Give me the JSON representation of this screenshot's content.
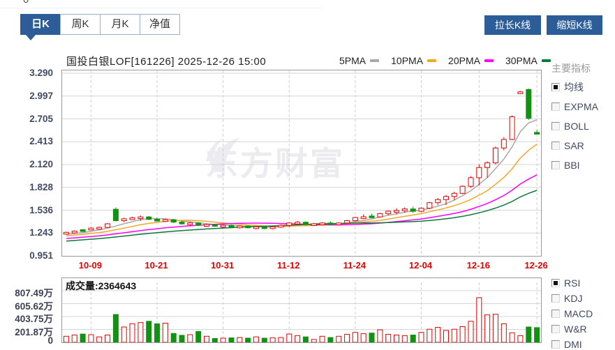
{
  "page": {
    "partial_top_text": "0"
  },
  "tabs": {
    "items": [
      {
        "label": "日K",
        "selected": true
      },
      {
        "label": "周K",
        "selected": false
      },
      {
        "label": "月K",
        "selected": false
      },
      {
        "label": "净值",
        "selected": false
      }
    ]
  },
  "toolbar": {
    "stretch_label": "拉长K线",
    "shrink_label": "缩短K线",
    "button_color": "#2d5d99"
  },
  "chart_header": {
    "title": "国投白银LOF[161226] 2025-12-26 15:00",
    "legend": [
      {
        "label": "5PMA",
        "color": "#a8a8a8"
      },
      {
        "label": "10PMA",
        "color": "#f5a623"
      },
      {
        "label": "20PMA",
        "color": "#ff00ff"
      },
      {
        "label": "30PMA",
        "color": "#0a7a3a"
      }
    ]
  },
  "watermark": {
    "text": "东方财富"
  },
  "sidebar": {
    "section_title": "主要指标",
    "main_indicators": [
      {
        "label": "均线",
        "checked": true
      },
      {
        "label": "EXPMA",
        "checked": false
      },
      {
        "label": "BOLL",
        "checked": false
      },
      {
        "label": "SAR",
        "checked": false
      },
      {
        "label": "BBI",
        "checked": false
      }
    ],
    "sub_indicators": [
      {
        "label": "RSI",
        "checked": true
      },
      {
        "label": "KDJ",
        "checked": false
      },
      {
        "label": "MACD",
        "checked": false
      },
      {
        "label": "W&R",
        "checked": false
      },
      {
        "label": "DMI",
        "checked": false
      }
    ]
  },
  "chart_data": [
    {
      "type": "candlestick",
      "title": "国投白银LOF[161226] 2025-12-26 15:00",
      "ylim": [
        0.951,
        3.29
      ],
      "y_axis_labels": [
        "3.290",
        "2.997",
        "2.705",
        "2.413",
        "2.120",
        "1.828",
        "1.536",
        "1.243",
        "0.951"
      ],
      "x_axis_labels": [
        "10-09",
        "10-21",
        "10-31",
        "11-12",
        "11-24",
        "12-04",
        "12-16",
        "12-26"
      ],
      "x_label_indices": [
        3,
        11,
        19,
        27,
        35,
        43,
        50,
        57
      ],
      "up_color": "#e60000",
      "down_color": "#119311",
      "grid": true,
      "candles_ohlc": [
        [
          1.245,
          1.262,
          1.228,
          1.252
        ],
        [
          1.252,
          1.278,
          1.242,
          1.268
        ],
        [
          1.286,
          1.292,
          1.27,
          1.278
        ],
        [
          1.298,
          1.318,
          1.278,
          1.306
        ],
        [
          1.306,
          1.326,
          1.292,
          1.316
        ],
        [
          1.316,
          1.372,
          1.308,
          1.362
        ],
        [
          1.548,
          1.572,
          1.392,
          1.402
        ],
        [
          1.402,
          1.438,
          1.382,
          1.426
        ],
        [
          1.426,
          1.452,
          1.412,
          1.438
        ],
        [
          1.438,
          1.468,
          1.398,
          1.45
        ],
        [
          1.45,
          1.462,
          1.408,
          1.42
        ],
        [
          1.42,
          1.442,
          1.392,
          1.403
        ],
        [
          1.403,
          1.428,
          1.382,
          1.414
        ],
        [
          1.414,
          1.422,
          1.372,
          1.383
        ],
        [
          1.383,
          1.398,
          1.352,
          1.363
        ],
        [
          1.363,
          1.382,
          1.342,
          1.373
        ],
        [
          1.373,
          1.382,
          1.332,
          1.343
        ],
        [
          1.343,
          1.362,
          1.322,
          1.353
        ],
        [
          1.353,
          1.362,
          1.322,
          1.333
        ],
        [
          1.333,
          1.352,
          1.312,
          1.343
        ],
        [
          1.343,
          1.352,
          1.312,
          1.323
        ],
        [
          1.323,
          1.342,
          1.302,
          1.333
        ],
        [
          1.333,
          1.342,
          1.302,
          1.313
        ],
        [
          1.313,
          1.332,
          1.292,
          1.323
        ],
        [
          1.323,
          1.332,
          1.292,
          1.303
        ],
        [
          1.303,
          1.332,
          1.292,
          1.322
        ],
        [
          1.322,
          1.352,
          1.312,
          1.342
        ],
        [
          1.342,
          1.382,
          1.322,
          1.372
        ],
        [
          1.372,
          1.398,
          1.342,
          1.382
        ],
        [
          1.382,
          1.392,
          1.342,
          1.352
        ],
        [
          1.352,
          1.372,
          1.332,
          1.362
        ],
        [
          1.362,
          1.382,
          1.342,
          1.372
        ],
        [
          1.372,
          1.392,
          1.352,
          1.362
        ],
        [
          1.362,
          1.382,
          1.342,
          1.372
        ],
        [
          1.372,
          1.412,
          1.358,
          1.402
        ],
        [
          1.402,
          1.452,
          1.392,
          1.442
        ],
        [
          1.442,
          1.482,
          1.422,
          1.452
        ],
        [
          1.462,
          1.492,
          1.438,
          1.45
        ],
        [
          1.45,
          1.502,
          1.442,
          1.492
        ],
        [
          1.492,
          1.532,
          1.472,
          1.522
        ],
        [
          1.522,
          1.562,
          1.482,
          1.532
        ],
        [
          1.532,
          1.572,
          1.502,
          1.552
        ],
        [
          1.552,
          1.582,
          1.502,
          1.522
        ],
        [
          1.522,
          1.572,
          1.512,
          1.562
        ],
        [
          1.562,
          1.642,
          1.552,
          1.632
        ],
        [
          1.632,
          1.692,
          1.602,
          1.672
        ],
        [
          1.672,
          1.732,
          1.602,
          1.712
        ],
        [
          1.712,
          1.772,
          1.662,
          1.752
        ],
        [
          1.752,
          1.852,
          1.742,
          1.842
        ],
        [
          1.842,
          1.972,
          1.822,
          1.952
        ],
        [
          1.952,
          2.122,
          1.852,
          2.082
        ],
        [
          2.082,
          2.162,
          1.952,
          2.142
        ],
        [
          2.142,
          2.352,
          2.122,
          2.332
        ],
        [
          2.332,
          2.472,
          2.302,
          2.442
        ],
        [
          2.442,
          2.752,
          2.432,
          2.732
        ],
        [
          3.042,
          3.062,
          3.022,
          3.052
        ],
        [
          3.082,
          3.092,
          2.692,
          2.712
        ],
        [
          2.532,
          2.562,
          2.512,
          2.528
        ]
      ],
      "ma_series": [
        {
          "name": "5PMA",
          "window": 5,
          "color": "#a8a8a8"
        },
        {
          "name": "10PMA",
          "window": 10,
          "color": "#f5a623"
        },
        {
          "name": "20PMA",
          "window": 20,
          "color": "#ff00ff"
        },
        {
          "name": "30PMA",
          "window": 30,
          "color": "#0a7a3a"
        }
      ],
      "ma_seed_history": [
        1.05,
        1.05,
        1.06,
        1.06,
        1.07,
        1.07,
        1.08,
        1.08,
        1.09,
        1.1,
        1.1,
        1.11,
        1.12,
        1.12,
        1.13,
        1.14,
        1.14,
        1.15,
        1.16,
        1.16,
        1.17,
        1.18,
        1.18,
        1.19,
        1.2,
        1.2,
        1.21,
        1.22,
        1.22,
        1.23
      ]
    },
    {
      "type": "bar",
      "name": "volume",
      "label": "成交量:2364643",
      "ymax_wan": 807.49,
      "y_axis_labels": [
        "807.49万",
        "605.62万",
        "403.75万",
        "201.87万",
        "0"
      ],
      "values_wan": [
        95,
        115,
        130,
        120,
        85,
        115,
        435,
        240,
        290,
        310,
        330,
        290,
        300,
        140,
        110,
        120,
        170,
        95,
        60,
        65,
        70,
        75,
        65,
        85,
        65,
        70,
        75,
        130,
        105,
        85,
        45,
        95,
        75,
        95,
        125,
        155,
        135,
        145,
        195,
        125,
        115,
        105,
        115,
        155,
        205,
        235,
        185,
        205,
        245,
        330,
        700,
        430,
        440,
        290,
        150,
        105,
        240,
        230
      ]
    }
  ]
}
